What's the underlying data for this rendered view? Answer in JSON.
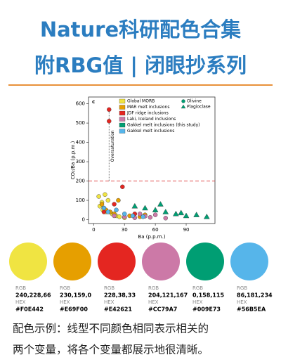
{
  "header": {
    "title": "Nature科研配色合集",
    "subtitle": "附RBG值 | 闭眼抄系列"
  },
  "chart_data": {
    "type": "scatter",
    "panel": "c",
    "x_label": "Ba (p.p.m.)",
    "y_label": "CO₂/Ba (p.p.m.)",
    "annotation": "Oversaturation",
    "hline": 200,
    "vline": 15,
    "xlim": [
      -5,
      118
    ],
    "ylim": [
      -20,
      635
    ],
    "xticks": [
      0,
      30,
      60,
      90
    ],
    "yticks": [
      0,
      100,
      200,
      300,
      400,
      500,
      600
    ],
    "marker_legend": [
      "Olivine",
      "Plagioclase"
    ],
    "series": [
      {
        "name": "Global MORB",
        "color": "#F0E442",
        "x": [
          5,
          8,
          10,
          12,
          14,
          18,
          22,
          25,
          30,
          6,
          9,
          11
        ],
        "values": [
          120,
          90,
          60,
          40,
          100,
          30,
          20,
          15,
          10,
          70,
          50,
          130
        ]
      },
      {
        "name": "MAR melt inclusions",
        "color": "#E69F00",
        "x": [
          8,
          12,
          16,
          20,
          24,
          35,
          45,
          50
        ],
        "values": [
          80,
          50,
          40,
          30,
          100,
          20,
          15,
          25
        ]
      },
      {
        "name": "JDF ridge inclusions",
        "color": "#E42621",
        "x": [
          15,
          15,
          20,
          28,
          10,
          40
        ],
        "values": [
          570,
          510,
          80,
          170,
          40,
          30
        ]
      },
      {
        "name": "Laki, Iceland inclusions",
        "color": "#CC79A7",
        "x": [
          20,
          30,
          40,
          50,
          55,
          60,
          70,
          45
        ],
        "values": [
          20,
          15,
          10,
          18,
          12,
          25,
          8,
          30
        ]
      },
      {
        "name": "Gakkel melt inclusions (this study)",
        "color": "#009E73",
        "x": [
          40,
          50,
          60,
          70,
          80,
          90,
          100,
          110,
          65,
          85
        ],
        "values": [
          70,
          60,
          50,
          40,
          30,
          20,
          25,
          15,
          80,
          35
        ]
      },
      {
        "name": "Gakkel melt inclusions",
        "color": "#56B5EA",
        "x": [
          10,
          14,
          22,
          30,
          38,
          48
        ],
        "values": [
          60,
          40,
          50,
          30,
          20,
          15
        ]
      }
    ]
  },
  "swatches": {
    "rgb_label": "RGB",
    "hex_label": "HEX",
    "items": [
      {
        "rgb": "240,228,66",
        "hex": "#F0E442"
      },
      {
        "rgb": "230,159,0",
        "hex": "#E69F00"
      },
      {
        "rgb": "228,38,33",
        "hex": "#E42621"
      },
      {
        "rgb": "204,121,167",
        "hex": "#CC79A7"
      },
      {
        "rgb": "0,158,115",
        "hex": "#009E73"
      },
      {
        "rgb": "86,181,234",
        "hex": "#56B5EA"
      }
    ]
  },
  "caption": [
    "配色示例：线型不同颜色相同表示相关的",
    "两个变量，将各个变量都展示地很清晰。"
  ]
}
